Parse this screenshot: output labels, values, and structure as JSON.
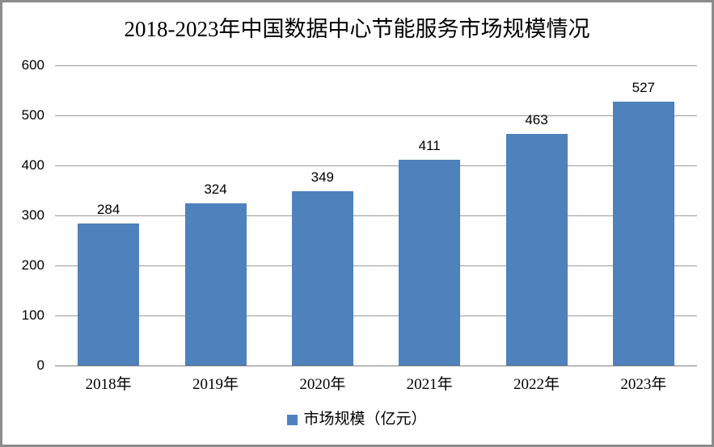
{
  "frame": {
    "border_color": "#8c8c8c",
    "background_color": "#ffffff"
  },
  "chart_data": {
    "type": "bar",
    "title": "2018-2023年中国数据中心节能服务市场规模情况",
    "categories": [
      "2018年",
      "2019年",
      "2020年",
      "2021年",
      "2022年",
      "2023年"
    ],
    "series": [
      {
        "name": "市场规模（亿元）",
        "values": [
          284,
          324,
          349,
          411,
          463,
          527
        ]
      }
    ],
    "data_labels": true,
    "xlabel": "",
    "ylabel": "",
    "ylim": [
      0,
      600
    ],
    "y_ticks": [
      0,
      100,
      200,
      300,
      400,
      500,
      600
    ],
    "grid": true,
    "legend_position": "bottom",
    "colors": {
      "bar": "#4F81BD",
      "gridline": "#999999",
      "axis_line": "#7f7f7f",
      "text": "#000000"
    }
  }
}
